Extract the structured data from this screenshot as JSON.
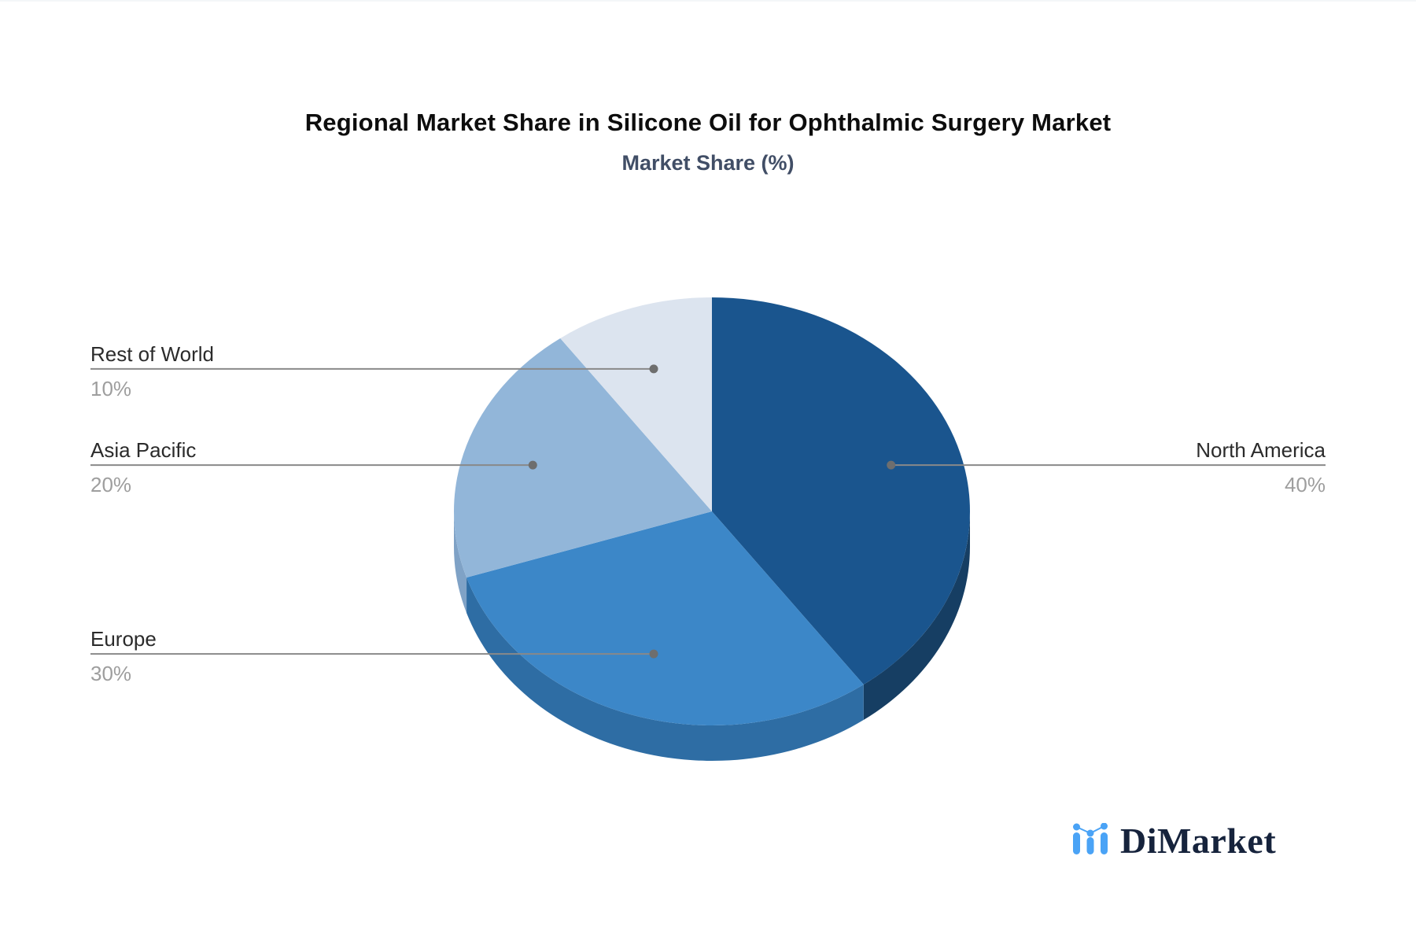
{
  "page": {
    "background": "#ffffff"
  },
  "header": {
    "title": "Regional Market Share in Silicone Oil for Ophthalmic Surgery Market",
    "subtitle": "Market Share (%)"
  },
  "chart_data": {
    "type": "pie",
    "style": "3d",
    "title": "Regional Market Share in Silicone Oil for Ophthalmic Surgery Market",
    "subtitle": "Market Share (%)",
    "unit": "%",
    "start_angle_deg": 0,
    "direction": "clockwise",
    "legend_position": "none",
    "slices": [
      {
        "label": "North America",
        "value": 40,
        "pct_label": "40%",
        "color": "#1a558e",
        "rim_color": "#163e63"
      },
      {
        "label": "Europe",
        "value": 30,
        "pct_label": "30%",
        "color": "#3c87c8",
        "rim_color": "#2e6da4"
      },
      {
        "label": "Asia Pacific",
        "value": 20,
        "pct_label": "20%",
        "color": "#92b6d9",
        "rim_color": "#7fa2c6"
      },
      {
        "label": "Rest of World",
        "value": 10,
        "pct_label": "10%",
        "color": "#dce4ef",
        "rim_color": "#b9c6d8"
      }
    ],
    "label_style": {
      "name_color": "#2b2b2b",
      "pct_color": "#9e9e9e",
      "line_color": "#898989",
      "dot_color": "#6e6e6e"
    }
  },
  "branding": {
    "name": "DiMarket",
    "icon": "bar-line-chart-icon",
    "icon_color": "#4aa3f6",
    "text_color": "#16233c"
  }
}
